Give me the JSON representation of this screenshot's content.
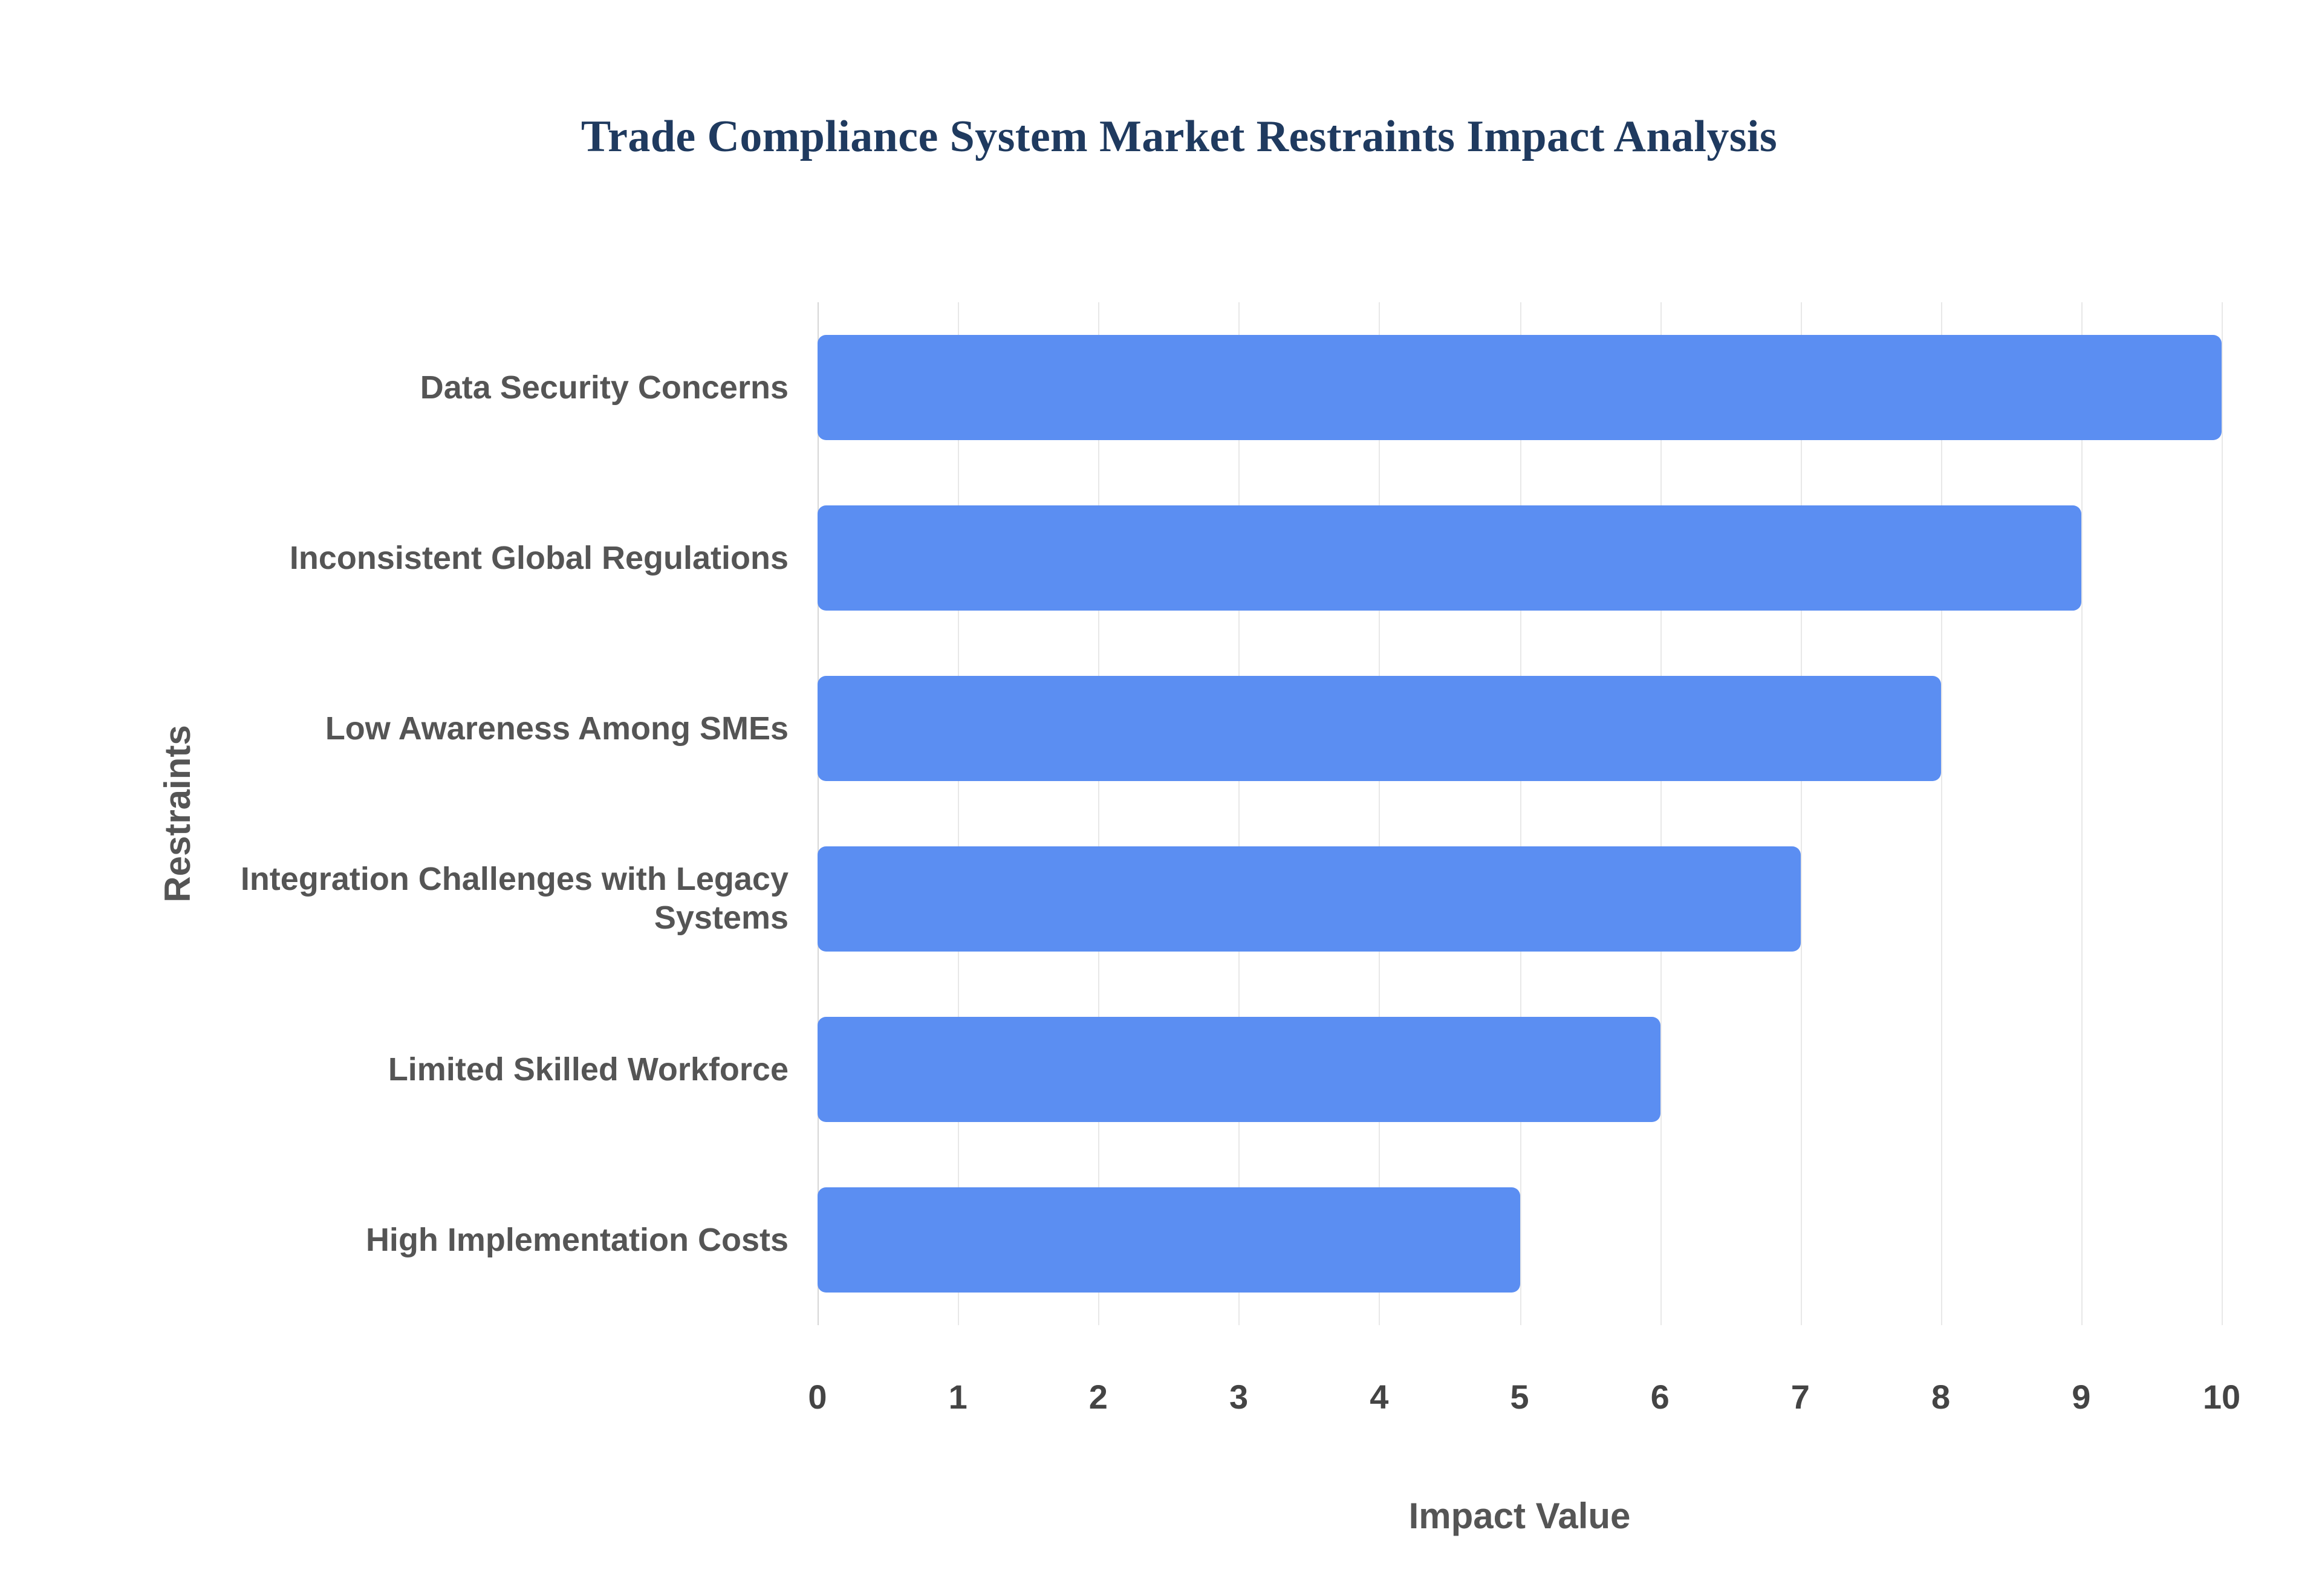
{
  "chart_data": {
    "type": "bar",
    "orientation": "horizontal",
    "title": "Trade Compliance System Market Restraints Impact Analysis",
    "xlabel": "Impact Value",
    "ylabel": "Restraints",
    "categories": [
      "Data Security Concerns",
      "Inconsistent Global Regulations",
      "Low Awareness Among SMEs",
      "Integration Challenges with Legacy Systems",
      "Limited Skilled Workforce",
      "High Implementation Costs"
    ],
    "values": [
      10,
      9,
      8,
      7,
      6,
      5
    ],
    "xlim": [
      0,
      10
    ],
    "xticks": [
      0,
      1,
      2,
      3,
      4,
      5,
      6,
      7,
      8,
      9,
      10
    ],
    "grid": "vertical",
    "legend": "none",
    "colors": {
      "bar": "#5b8ef2",
      "title": "#1f3a5f",
      "category_label": "#555555",
      "tick_label": "#444444",
      "axis_title": "#555555",
      "gridline": "#e8e8e8",
      "background": "#ffffff"
    }
  }
}
